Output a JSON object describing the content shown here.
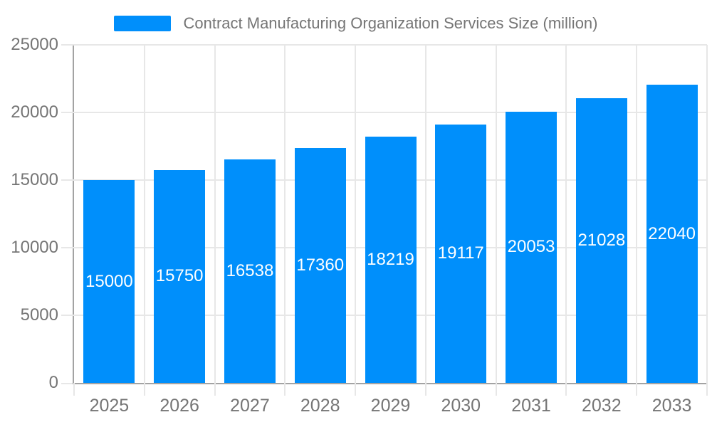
{
  "chart_data": {
    "type": "bar",
    "title": "Contract Manufacturing Organization Services Size (million)",
    "series": [
      {
        "name": "Contract Manufacturing Organization Services Size (million)",
        "values": [
          15000,
          15750,
          16538,
          17360,
          18219,
          19117,
          20053,
          21028,
          22040
        ]
      }
    ],
    "categories": [
      "2025",
      "2026",
      "2027",
      "2028",
      "2029",
      "2030",
      "2031",
      "2032",
      "2033"
    ],
    "xlabel": "",
    "ylabel": "",
    "ylim": [
      0,
      25000
    ],
    "yticks": [
      0,
      5000,
      10000,
      15000,
      20000,
      25000
    ],
    "grid": true,
    "legend_position": "top",
    "data_labels": "inside-center",
    "colors": {
      "bar": "#008FFB",
      "bar_label": "#FFFFFF",
      "axis_text": "#757575",
      "grid": "#E7E7E7",
      "axis_line": "#A3A3A3",
      "background": "#FFFFFF"
    }
  }
}
